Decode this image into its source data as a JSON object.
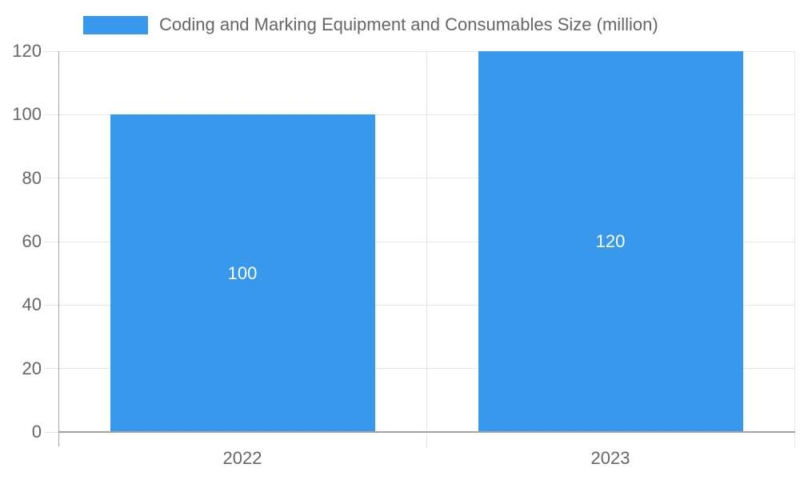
{
  "chart_data": {
    "type": "bar",
    "title": "Coding and Marking Equipment and Consumables Size (million)",
    "categories": [
      "2022",
      "2023"
    ],
    "series": [
      {
        "name": "Coding and Marking Equipment and Consumables Size (million)",
        "values": [
          100,
          120
        ]
      }
    ],
    "bar_value_labels": [
      "100",
      "120"
    ],
    "xlabel": "",
    "ylabel": "",
    "ylim": [
      0,
      120
    ],
    "ytick_step": 20,
    "ytick_labels": [
      "0",
      "20",
      "40",
      "60",
      "80",
      "100",
      "120"
    ],
    "grid": true,
    "legend_position": "top",
    "colors": {
      "bar": "#3898eb",
      "bar_label_text": "#ffffff",
      "axis_text": "#666666",
      "gridline": "#e6e6e6",
      "axis_line": "#a3a3a3",
      "background": "#ffffff"
    }
  }
}
